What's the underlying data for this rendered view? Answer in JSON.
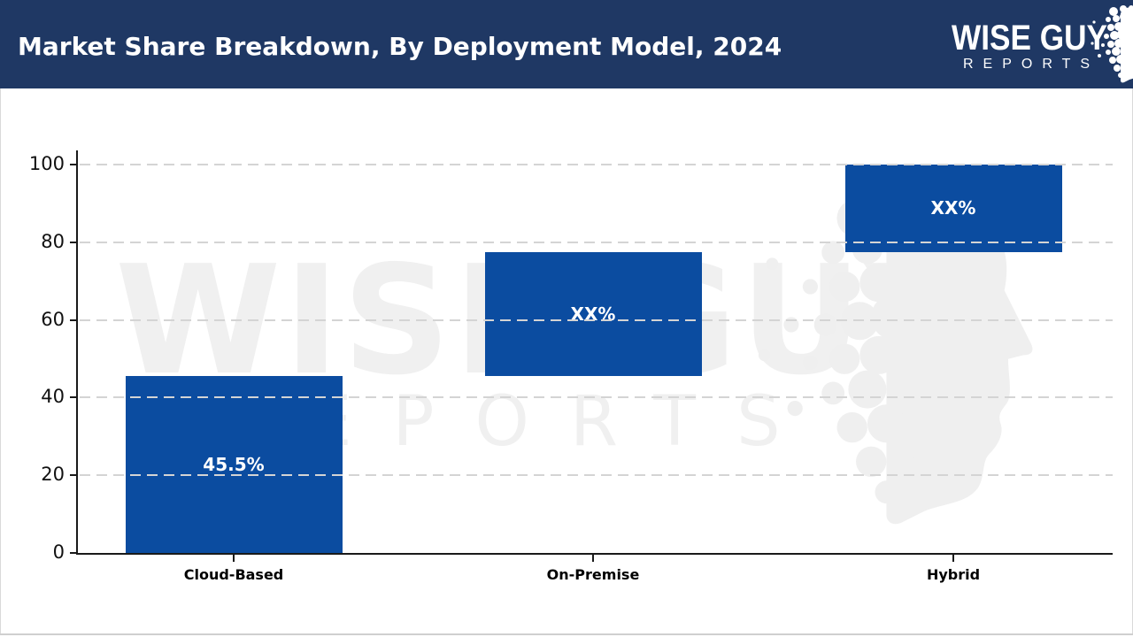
{
  "header": {
    "title": "Market Share Breakdown, By Deployment Model, 2024",
    "logo": {
      "brand_line1": "WISE GUY",
      "brand_line2": "REPORTS",
      "head_icon": "dotted-face-profile"
    }
  },
  "watermark": {
    "line1": "WISE GUY",
    "line2": "REPORTS"
  },
  "chart_data": {
    "type": "bar",
    "variant": "floating-segment-waterfall",
    "title": "Market Share Breakdown, By Deployment Model, 2024",
    "categories": [
      "Cloud-Based",
      "On-Premise",
      "Hybrid"
    ],
    "segments": [
      {
        "category": "Cloud-Based",
        "start": 0,
        "end": 45.5,
        "value_label": "45.5%"
      },
      {
        "category": "On-Premise",
        "start": 45.5,
        "end": 77.5,
        "value_label": "XX%"
      },
      {
        "category": "Hybrid",
        "start": 77.5,
        "end": 100,
        "value_label": "XX%"
      }
    ],
    "xlabel": "",
    "ylabel": "",
    "ylim": [
      0,
      100
    ],
    "yticks": [
      0,
      20,
      40,
      60,
      80,
      100
    ],
    "grid": {
      "horizontal": true,
      "style": "dashed"
    },
    "legend": "none",
    "bar_color": "#0b4ca0",
    "value_label_color": "#ffffff"
  },
  "colors": {
    "header_bg": "#1f3864",
    "bar": "#0b4ca0",
    "gridline": "#d4d4d4",
    "axis": "#1a1a1a",
    "watermark": "#f0f0f0",
    "page_bg": "#ffffff"
  }
}
